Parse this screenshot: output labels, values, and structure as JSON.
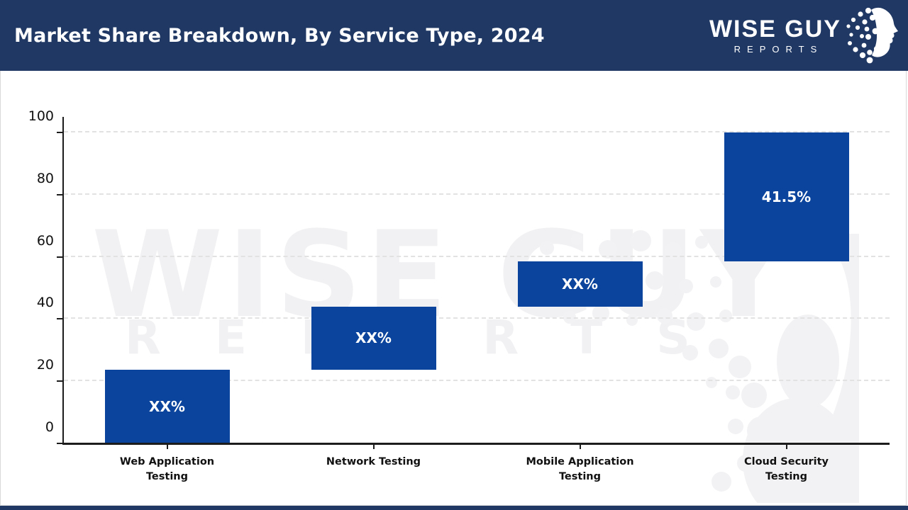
{
  "header": {
    "title": "Market Share Breakdown, By Service Type, 2024",
    "logo": {
      "line1": "WISE GUY",
      "line2": "REPORTS"
    }
  },
  "watermark": {
    "line1": "WISE GUY",
    "line2": "REPORTS"
  },
  "colors": {
    "header_bg": "#1f3864",
    "bar": "#0a449c",
    "grid": "#e2e2e2",
    "axis": "#1c1c1c",
    "watermark": "#f1f1f3"
  },
  "chart_data": {
    "type": "bar",
    "subtype": "waterfall-floating-bars",
    "title": "Market Share Breakdown, By Service Type, 2024",
    "categories": [
      "Web Application Testing",
      "Network Testing",
      "Mobile Application Testing",
      "Cloud Security Testing"
    ],
    "segments": [
      {
        "category": "Web Application Testing",
        "start": 0,
        "end": 23.7,
        "label": "XX%"
      },
      {
        "category": "Network Testing",
        "start": 23.7,
        "end": 44.0,
        "label": "XX%"
      },
      {
        "category": "Mobile Application Testing",
        "start": 44.0,
        "end": 58.5,
        "label": "XX%"
      },
      {
        "category": "Cloud Security Testing",
        "start": 58.5,
        "end": 100.0,
        "label": "41.5%"
      }
    ],
    "yticks": [
      0,
      20,
      40,
      60,
      80,
      100
    ],
    "ylim": [
      0,
      105
    ],
    "xlabel": "",
    "ylabel": "",
    "grid": "horizontal-dashed",
    "legend": "none"
  }
}
